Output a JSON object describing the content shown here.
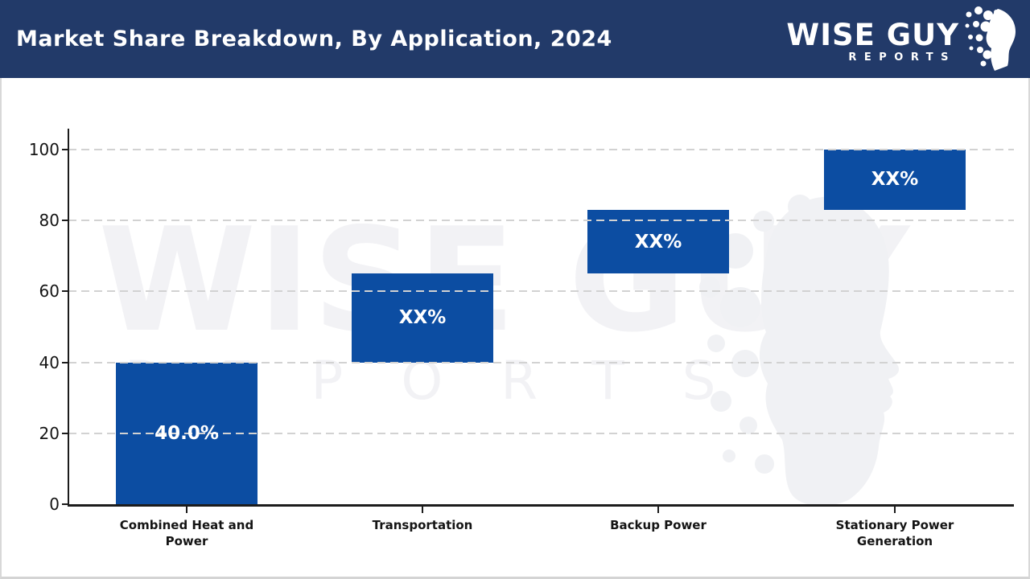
{
  "header": {
    "title": "Market Share Breakdown, By Application, 2024",
    "logo": {
      "wordmark": "WISE GUY",
      "subtext": "REPORTS"
    },
    "bg_color": "#223a69"
  },
  "watermark": {
    "line1": "WISE GUY",
    "line2": "REPORTS"
  },
  "chart_data": {
    "type": "bar",
    "subtype": "waterfall",
    "title": "Market Share Breakdown, By Application, 2024",
    "categories": [
      "Combined Heat and\nPower",
      "Transportation",
      "Backup Power",
      "Stationary Power\nGeneration"
    ],
    "series": [
      {
        "name": "Market Share",
        "segments": [
          {
            "category": "Combined Heat and Power",
            "start": 0,
            "end": 40,
            "label": "40.0%"
          },
          {
            "category": "Transportation",
            "start": 40,
            "end": 65,
            "label": "XX%"
          },
          {
            "category": "Backup Power",
            "start": 65,
            "end": 83,
            "label": "XX%"
          },
          {
            "category": "Stationary Power Generation",
            "start": 83,
            "end": 100,
            "label": "XX%"
          }
        ]
      }
    ],
    "xlabel": "",
    "ylabel": "",
    "yticks": [
      0,
      20,
      40,
      60,
      80,
      100
    ],
    "ylim": [
      0,
      100
    ],
    "grid": "dashed-horizontal-above-bars",
    "legend": "none",
    "bar_color": "#0c4da2",
    "value_label_color": "#ffffff"
  }
}
